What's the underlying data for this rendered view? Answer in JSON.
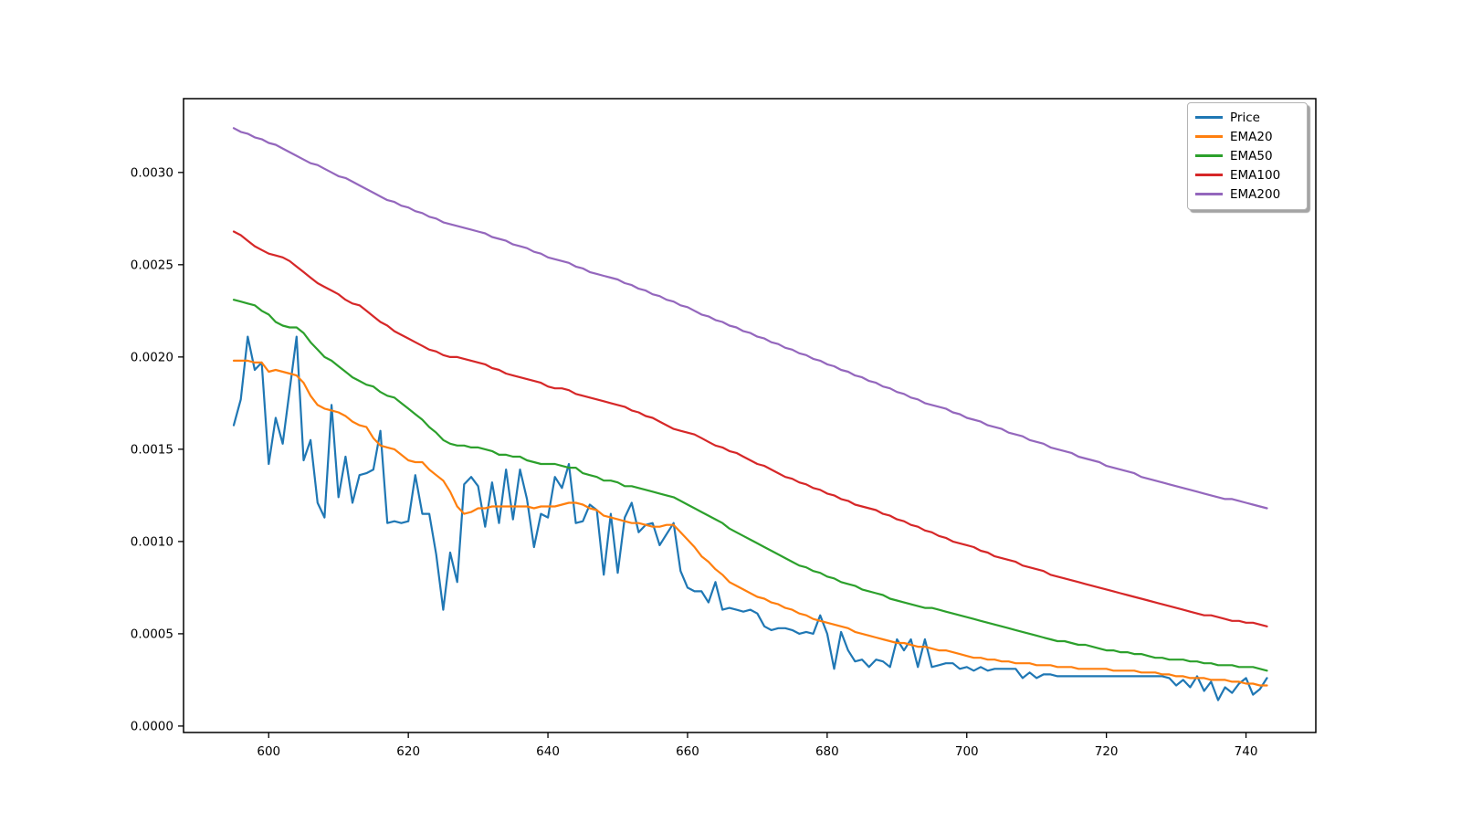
{
  "figure": {
    "background_color": "#ffffff",
    "axes_edge_color": "#000000",
    "legend_position": "upper right"
  },
  "chart_data": {
    "type": "line",
    "title": "",
    "grid": false,
    "legend_position": "upper right",
    "x_start": 595,
    "x_step": 1,
    "y_scale": 0.0001,
    "xlim": [
      587.8,
      750.0
    ],
    "ylim_scaled": [
      -0.35,
      34.0
    ],
    "xticks": {
      "values": [
        600,
        620,
        640,
        660,
        680,
        700,
        720,
        740
      ],
      "labels": [
        "600",
        "620",
        "640",
        "660",
        "680",
        "700",
        "720",
        "740"
      ]
    },
    "yticks": {
      "values_scaled": [
        0,
        5,
        10,
        15,
        20,
        25,
        30
      ],
      "labels": [
        "0.0000",
        "0.0005",
        "0.0010",
        "0.0015",
        "0.0020",
        "0.0025",
        "0.0030"
      ]
    },
    "series": [
      {
        "name": "Price",
        "color": "#1f77b4",
        "values_1e4": [
          16.3,
          17.7,
          21.1,
          19.3,
          19.7,
          14.2,
          16.7,
          15.3,
          18.2,
          21.1,
          14.4,
          15.5,
          12.1,
          11.3,
          17.4,
          12.4,
          14.6,
          12.1,
          13.6,
          13.7,
          13.9,
          16.0,
          11.0,
          11.1,
          11.0,
          11.1,
          13.6,
          11.5,
          11.5,
          9.3,
          6.3,
          9.4,
          7.8,
          13.1,
          13.5,
          13.0,
          10.8,
          13.2,
          11.0,
          13.9,
          11.2,
          13.9,
          12.3,
          9.7,
          11.5,
          11.3,
          13.5,
          12.9,
          14.2,
          11.0,
          11.1,
          12.0,
          11.7,
          8.2,
          11.5,
          8.3,
          11.3,
          12.1,
          10.5,
          10.9,
          11.0,
          9.8,
          10.4,
          11.0,
          8.4,
          7.5,
          7.3,
          7.3,
          6.7,
          7.8,
          6.3,
          6.4,
          6.3,
          6.2,
          6.3,
          6.1,
          5.4,
          5.2,
          5.3,
          5.3,
          5.2,
          5.0,
          5.1,
          5.0,
          6.0,
          5.0,
          3.1,
          5.1,
          4.1,
          3.5,
          3.6,
          3.2,
          3.6,
          3.5,
          3.2,
          4.7,
          4.1,
          4.7,
          3.2,
          4.7,
          3.2,
          3.3,
          3.4,
          3.4,
          3.1,
          3.2,
          3.0,
          3.2,
          3.0,
          3.1,
          3.1,
          3.1,
          3.1,
          2.6,
          2.9,
          2.6,
          2.8,
          2.8,
          2.7,
          2.7,
          2.7,
          2.7,
          2.7,
          2.7,
          2.7,
          2.7,
          2.7,
          2.7,
          2.7,
          2.7,
          2.7,
          2.7,
          2.7,
          2.7,
          2.6,
          2.2,
          2.5,
          2.1,
          2.7,
          1.9,
          2.4,
          1.4,
          2.1,
          1.8,
          2.3,
          2.6,
          1.7,
          2.0,
          2.6
        ]
      },
      {
        "name": "EMA20",
        "color": "#ff7f0e",
        "values_1e4": [
          19.8,
          19.8,
          19.8,
          19.7,
          19.7,
          19.2,
          19.3,
          19.2,
          19.1,
          19.0,
          18.6,
          17.9,
          17.4,
          17.2,
          17.1,
          17.0,
          16.8,
          16.5,
          16.3,
          16.2,
          15.6,
          15.2,
          15.1,
          15.0,
          14.7,
          14.4,
          14.3,
          14.3,
          13.9,
          13.6,
          13.3,
          12.7,
          11.9,
          11.5,
          11.6,
          11.8,
          11.8,
          11.9,
          11.9,
          11.9,
          11.9,
          11.9,
          11.9,
          11.8,
          11.9,
          11.9,
          11.9,
          12.0,
          12.1,
          12.1,
          12.0,
          11.8,
          11.7,
          11.4,
          11.3,
          11.2,
          11.1,
          11.0,
          11.0,
          10.9,
          10.8,
          10.8,
          10.9,
          10.9,
          10.5,
          10.1,
          9.7,
          9.2,
          8.9,
          8.5,
          8.2,
          7.8,
          7.6,
          7.4,
          7.2,
          7.0,
          6.9,
          6.7,
          6.6,
          6.4,
          6.3,
          6.1,
          6.0,
          5.8,
          5.7,
          5.6,
          5.5,
          5.4,
          5.3,
          5.1,
          5.0,
          4.9,
          4.8,
          4.7,
          4.6,
          4.5,
          4.5,
          4.4,
          4.3,
          4.3,
          4.2,
          4.1,
          4.1,
          4.0,
          3.9,
          3.8,
          3.7,
          3.7,
          3.6,
          3.6,
          3.5,
          3.5,
          3.4,
          3.4,
          3.4,
          3.3,
          3.3,
          3.3,
          3.2,
          3.2,
          3.2,
          3.1,
          3.1,
          3.1,
          3.1,
          3.1,
          3.0,
          3.0,
          3.0,
          3.0,
          2.9,
          2.9,
          2.9,
          2.8,
          2.8,
          2.7,
          2.7,
          2.6,
          2.6,
          2.6,
          2.5,
          2.5,
          2.5,
          2.4,
          2.4,
          2.3,
          2.3,
          2.2,
          2.2
        ]
      },
      {
        "name": "EMA50",
        "color": "#2ca02c",
        "values_1e4": [
          23.1,
          23.0,
          22.9,
          22.8,
          22.5,
          22.3,
          21.9,
          21.7,
          21.6,
          21.6,
          21.3,
          20.8,
          20.4,
          20.0,
          19.8,
          19.5,
          19.2,
          18.9,
          18.7,
          18.5,
          18.4,
          18.1,
          17.9,
          17.8,
          17.5,
          17.2,
          16.9,
          16.6,
          16.2,
          15.9,
          15.5,
          15.3,
          15.2,
          15.2,
          15.1,
          15.1,
          15.0,
          14.9,
          14.7,
          14.7,
          14.6,
          14.6,
          14.4,
          14.3,
          14.2,
          14.2,
          14.2,
          14.1,
          14.0,
          14.0,
          13.7,
          13.6,
          13.5,
          13.3,
          13.3,
          13.2,
          13.0,
          13.0,
          12.9,
          12.8,
          12.7,
          12.6,
          12.5,
          12.4,
          12.2,
          12.0,
          11.8,
          11.6,
          11.4,
          11.2,
          11.0,
          10.7,
          10.5,
          10.3,
          10.1,
          9.9,
          9.7,
          9.5,
          9.3,
          9.1,
          8.9,
          8.7,
          8.6,
          8.4,
          8.3,
          8.1,
          8.0,
          7.8,
          7.7,
          7.6,
          7.4,
          7.3,
          7.2,
          7.1,
          6.9,
          6.8,
          6.7,
          6.6,
          6.5,
          6.4,
          6.4,
          6.3,
          6.2,
          6.1,
          6.0,
          5.9,
          5.8,
          5.7,
          5.6,
          5.5,
          5.4,
          5.3,
          5.2,
          5.1,
          5.0,
          4.9,
          4.8,
          4.7,
          4.6,
          4.6,
          4.5,
          4.4,
          4.4,
          4.3,
          4.2,
          4.1,
          4.1,
          4.0,
          4.0,
          3.9,
          3.9,
          3.8,
          3.7,
          3.7,
          3.6,
          3.6,
          3.6,
          3.5,
          3.5,
          3.4,
          3.4,
          3.3,
          3.3,
          3.3,
          3.2,
          3.2,
          3.2,
          3.1,
          3.0
        ]
      },
      {
        "name": "EMA100",
        "color": "#d62728",
        "values_1e4": [
          26.8,
          26.6,
          26.3,
          26.0,
          25.8,
          25.6,
          25.5,
          25.4,
          25.2,
          24.9,
          24.6,
          24.3,
          24.0,
          23.8,
          23.6,
          23.4,
          23.1,
          22.9,
          22.8,
          22.5,
          22.2,
          21.9,
          21.7,
          21.4,
          21.2,
          21.0,
          20.8,
          20.6,
          20.4,
          20.3,
          20.1,
          20.0,
          20.0,
          19.9,
          19.8,
          19.7,
          19.6,
          19.4,
          19.3,
          19.1,
          19.0,
          18.9,
          18.8,
          18.7,
          18.6,
          18.4,
          18.3,
          18.3,
          18.2,
          18.0,
          17.9,
          17.8,
          17.7,
          17.6,
          17.5,
          17.4,
          17.3,
          17.1,
          17.0,
          16.8,
          16.7,
          16.5,
          16.3,
          16.1,
          16.0,
          15.9,
          15.8,
          15.6,
          15.4,
          15.2,
          15.1,
          14.9,
          14.8,
          14.6,
          14.4,
          14.2,
          14.1,
          13.9,
          13.7,
          13.5,
          13.4,
          13.2,
          13.1,
          12.9,
          12.8,
          12.6,
          12.5,
          12.3,
          12.2,
          12.0,
          11.9,
          11.8,
          11.7,
          11.5,
          11.4,
          11.2,
          11.1,
          10.9,
          10.8,
          10.6,
          10.5,
          10.3,
          10.2,
          10.0,
          9.9,
          9.8,
          9.7,
          9.5,
          9.4,
          9.2,
          9.1,
          9.0,
          8.9,
          8.7,
          8.6,
          8.5,
          8.4,
          8.2,
          8.1,
          8.0,
          7.9,
          7.8,
          7.7,
          7.6,
          7.5,
          7.4,
          7.3,
          7.2,
          7.1,
          7.0,
          6.9,
          6.8,
          6.7,
          6.6,
          6.5,
          6.4,
          6.3,
          6.2,
          6.1,
          6.0,
          6.0,
          5.9,
          5.8,
          5.7,
          5.7,
          5.6,
          5.6,
          5.5,
          5.4
        ]
      },
      {
        "name": "EMA200",
        "color": "#9467bd",
        "values_1e4": [
          32.4,
          32.2,
          32.1,
          31.9,
          31.8,
          31.6,
          31.5,
          31.3,
          31.1,
          30.9,
          30.7,
          30.5,
          30.4,
          30.2,
          30.0,
          29.8,
          29.7,
          29.5,
          29.3,
          29.1,
          28.9,
          28.7,
          28.5,
          28.4,
          28.2,
          28.1,
          27.9,
          27.8,
          27.6,
          27.5,
          27.3,
          27.2,
          27.1,
          27.0,
          26.9,
          26.8,
          26.7,
          26.5,
          26.4,
          26.3,
          26.1,
          26.0,
          25.9,
          25.7,
          25.6,
          25.4,
          25.3,
          25.2,
          25.1,
          24.9,
          24.8,
          24.6,
          24.5,
          24.4,
          24.3,
          24.2,
          24.0,
          23.9,
          23.7,
          23.6,
          23.4,
          23.3,
          23.1,
          23.0,
          22.8,
          22.7,
          22.5,
          22.3,
          22.2,
          22.0,
          21.9,
          21.7,
          21.6,
          21.4,
          21.3,
          21.1,
          21.0,
          20.8,
          20.7,
          20.5,
          20.4,
          20.2,
          20.1,
          19.9,
          19.8,
          19.6,
          19.5,
          19.3,
          19.2,
          19.0,
          18.9,
          18.7,
          18.6,
          18.4,
          18.3,
          18.1,
          18.0,
          17.8,
          17.7,
          17.5,
          17.4,
          17.3,
          17.2,
          17.0,
          16.9,
          16.7,
          16.6,
          16.5,
          16.3,
          16.2,
          16.1,
          15.9,
          15.8,
          15.7,
          15.5,
          15.4,
          15.3,
          15.1,
          15.0,
          14.9,
          14.8,
          14.6,
          14.5,
          14.4,
          14.3,
          14.1,
          14.0,
          13.9,
          13.8,
          13.7,
          13.5,
          13.4,
          13.3,
          13.2,
          13.1,
          13.0,
          12.9,
          12.8,
          12.7,
          12.6,
          12.5,
          12.4,
          12.3,
          12.3,
          12.2,
          12.1,
          12.0,
          11.9,
          11.8
        ]
      }
    ]
  }
}
